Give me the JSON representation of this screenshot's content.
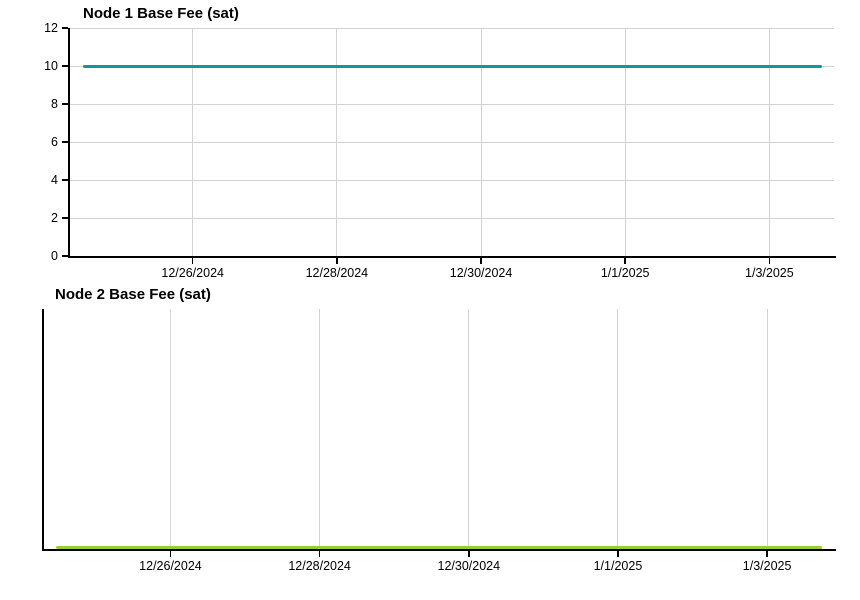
{
  "page": {
    "background_color": "#ffffff",
    "text_color": "#000000"
  },
  "chart_data": [
    {
      "type": "line",
      "title": "Node 1 Base Fee (sat)",
      "xlabel": "",
      "ylabel": "",
      "ylim": [
        0,
        12
      ],
      "y_ticks": [
        0,
        2,
        4,
        6,
        8,
        10,
        12
      ],
      "x_tick_labels": [
        "12/26/2024",
        "12/28/2024",
        "12/30/2024",
        "1/1/2025",
        "1/3/2025"
      ],
      "grid": {
        "horizontal": true,
        "vertical": true
      },
      "legend": "none",
      "axis_color": "#000000",
      "gridline_color": "#d3d3d3",
      "series": [
        {
          "name": "Node 1 Base Fee (sat)",
          "color": "#0f979e",
          "style": "solid",
          "constant_value": 10
        }
      ]
    },
    {
      "type": "line",
      "title": "Node 2 Base Fee (sat)",
      "xlabel": "",
      "ylabel": "",
      "y_ticks": [],
      "x_tick_labels": [
        "12/26/2024",
        "12/28/2024",
        "12/30/2024",
        "1/1/2025",
        "1/3/2025"
      ],
      "grid": {
        "horizontal": false,
        "vertical": true
      },
      "legend": "none",
      "axis_color": "#000000",
      "gridline_color": "#d3d3d3",
      "series": [
        {
          "name": "Node 2 Base Fee (sat)",
          "color": "#9acd32",
          "style": "solid",
          "constant_value": 0
        }
      ]
    }
  ]
}
